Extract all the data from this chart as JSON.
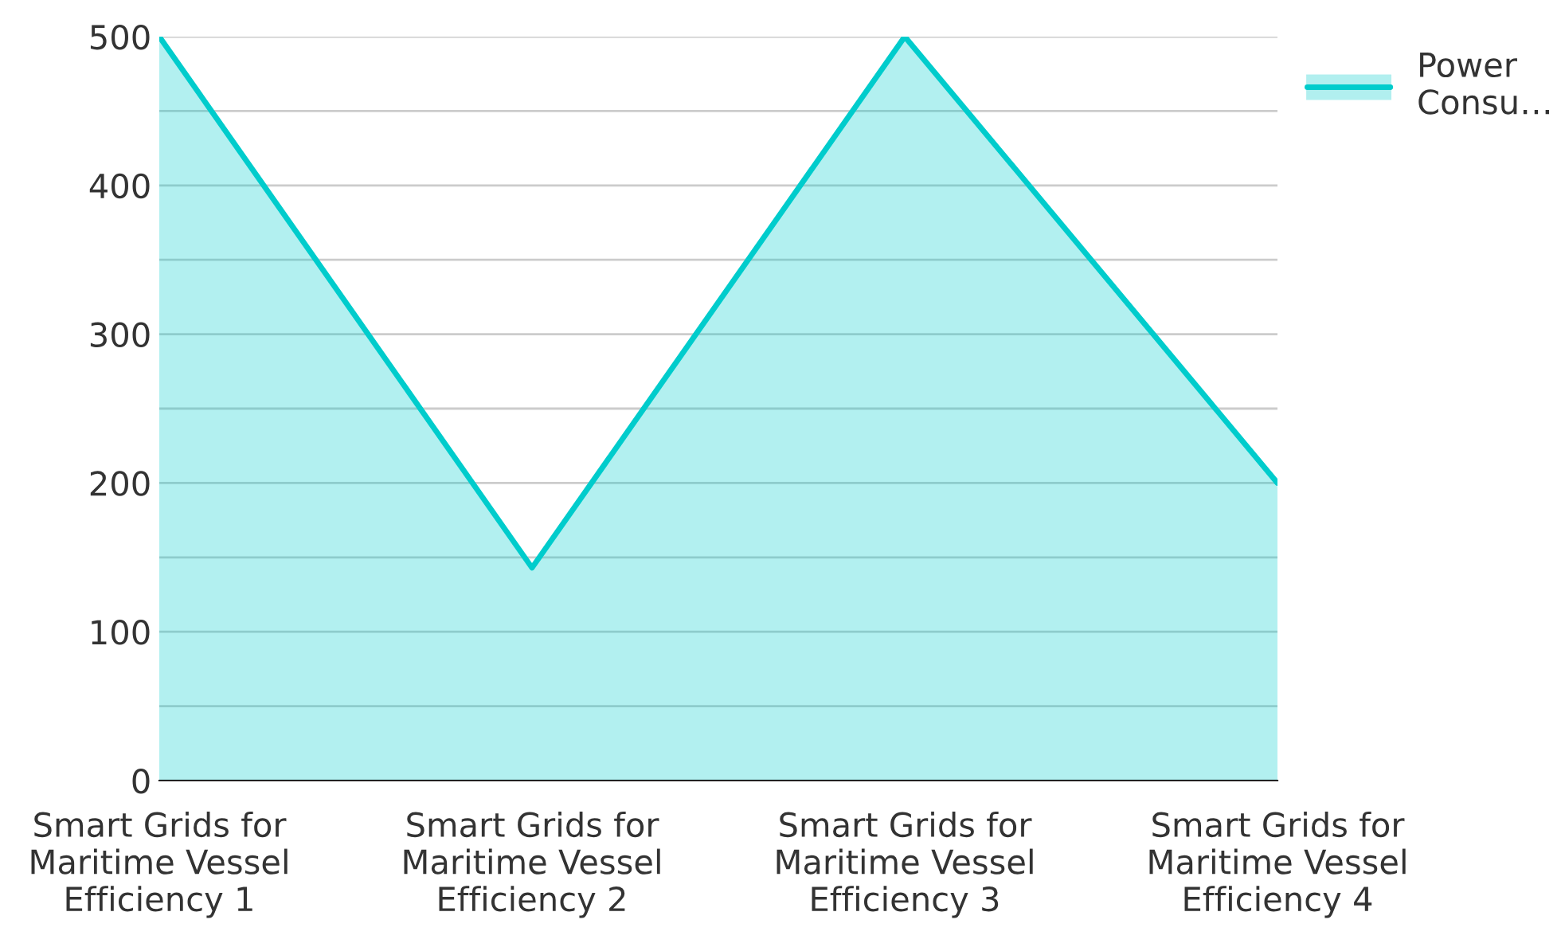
{
  "chart_data": {
    "type": "area",
    "categories": [
      "Smart Grids for\nMaritime Vessel\nEfficiency 1",
      "Smart Grids for\nMaritime Vessel\nEfficiency 2",
      "Smart Grids for\nMaritime Vessel\nEfficiency 3",
      "Smart Grids for\nMaritime Vessel\nEfficiency 4"
    ],
    "series": [
      {
        "name": "Power\nConsu…",
        "color": "#00cccc",
        "values": [
          500,
          143,
          500,
          200
        ]
      }
    ],
    "ylim": [
      0,
      500
    ],
    "yticks": [
      0,
      {
        "value": 50,
        "label": null
      },
      100,
      {
        "value": 150,
        "label": null
      },
      200,
      {
        "value": 250,
        "label": null
      },
      300,
      {
        "value": 350,
        "label": null
      },
      400,
      {
        "value": 450,
        "label": null
      },
      500
    ],
    "grid": "y",
    "legend": "top right"
  }
}
